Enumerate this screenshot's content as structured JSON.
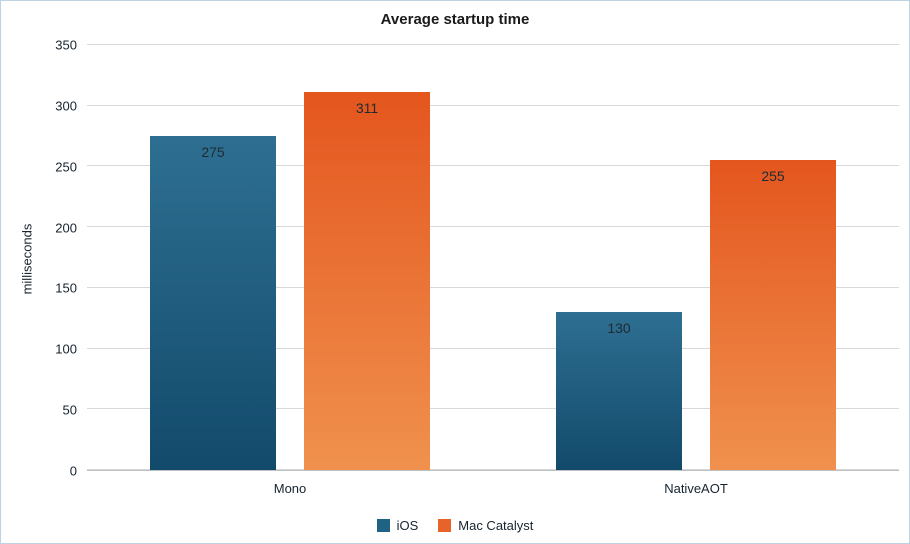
{
  "chart_data": {
    "type": "bar",
    "title": "Average startup time",
    "ylabel": "milliseconds",
    "xlabel": "",
    "categories": [
      "Mono",
      "NativeAOT"
    ],
    "series": [
      {
        "name": "iOS",
        "values": [
          275,
          130
        ],
        "gradient_top": "#2e6f91",
        "gradient_bottom": "#124a6b",
        "legend_color": "#1f6283"
      },
      {
        "name": "Mac Catalyst",
        "values": [
          311,
          255
        ],
        "gradient_top": "#e4561e",
        "gradient_bottom": "#f0914e",
        "legend_color": "#e8632a"
      }
    ],
    "ylim": [
      0,
      350
    ],
    "ytick_step": 50,
    "grid": "horizontal",
    "legend_position": "bottom",
    "data_labels": "inside-top"
  }
}
